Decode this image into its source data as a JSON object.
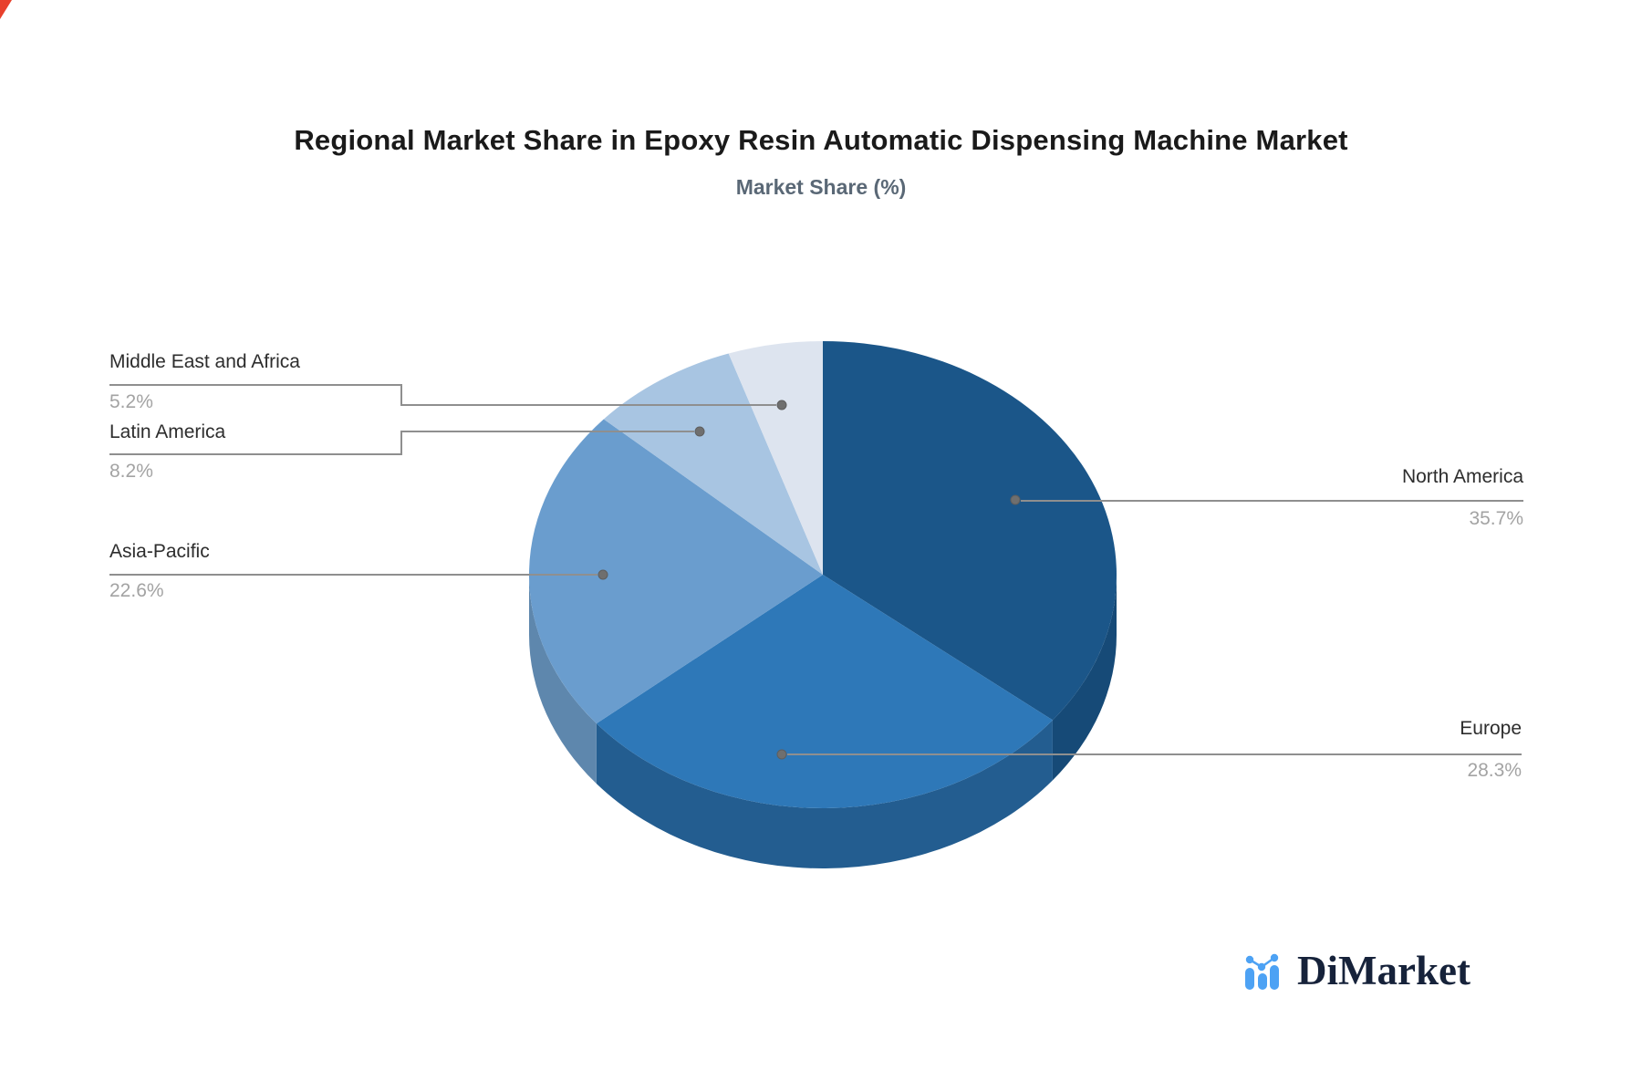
{
  "header": {
    "title": "Regional Market Share in Epoxy Resin Automatic Dispensing Machine Market",
    "subtitle": "Market Share (%)",
    "title_color": "#1a1a1a",
    "subtitle_color": "#5a6876"
  },
  "chart_data": {
    "type": "pie",
    "effect": "3d",
    "title": "Regional Market Share in Epoxy Resin Automatic Dispensing Machine Market",
    "subtitle": "Market Share (%)",
    "unit": "%",
    "direction": "clockwise",
    "start_angle_deg": 0,
    "legend_position": "callout-labels",
    "grid": false,
    "categories": [
      "North America",
      "Europe",
      "Asia-Pacific",
      "Latin America",
      "Middle East and Africa"
    ],
    "values": [
      35.7,
      28.3,
      22.6,
      8.2,
      5.2
    ],
    "slices": [
      {
        "name": "North America",
        "value": 35.7,
        "pct": "35.7%",
        "color": "#1b5689",
        "side_color": "#164a77"
      },
      {
        "name": "Europe",
        "value": 28.3,
        "pct": "28.3%",
        "color": "#2e78b8",
        "side_color": "#235d90"
      },
      {
        "name": "Asia-Pacific",
        "value": 22.6,
        "pct": "22.6%",
        "color": "#6a9dce",
        "side_color": "#5e87ad"
      },
      {
        "name": "Latin America",
        "value": 8.2,
        "pct": "8.2%",
        "color": "#a8c5e2",
        "side_color": "#8fb4d6"
      },
      {
        "name": "Middle East and Africa",
        "value": 5.2,
        "pct": "5.2%",
        "color": "#dde4ef",
        "side_color": "#c3d2e4"
      }
    ],
    "callout_line_color": "#8f8f8f",
    "callout_dot_color": "#6f6f6f"
  },
  "branding": {
    "logo_text": "DiMarket",
    "logo_color": "#16223a",
    "icon_color": "#4da2f4",
    "icon": "bar-chart-sparkline"
  }
}
